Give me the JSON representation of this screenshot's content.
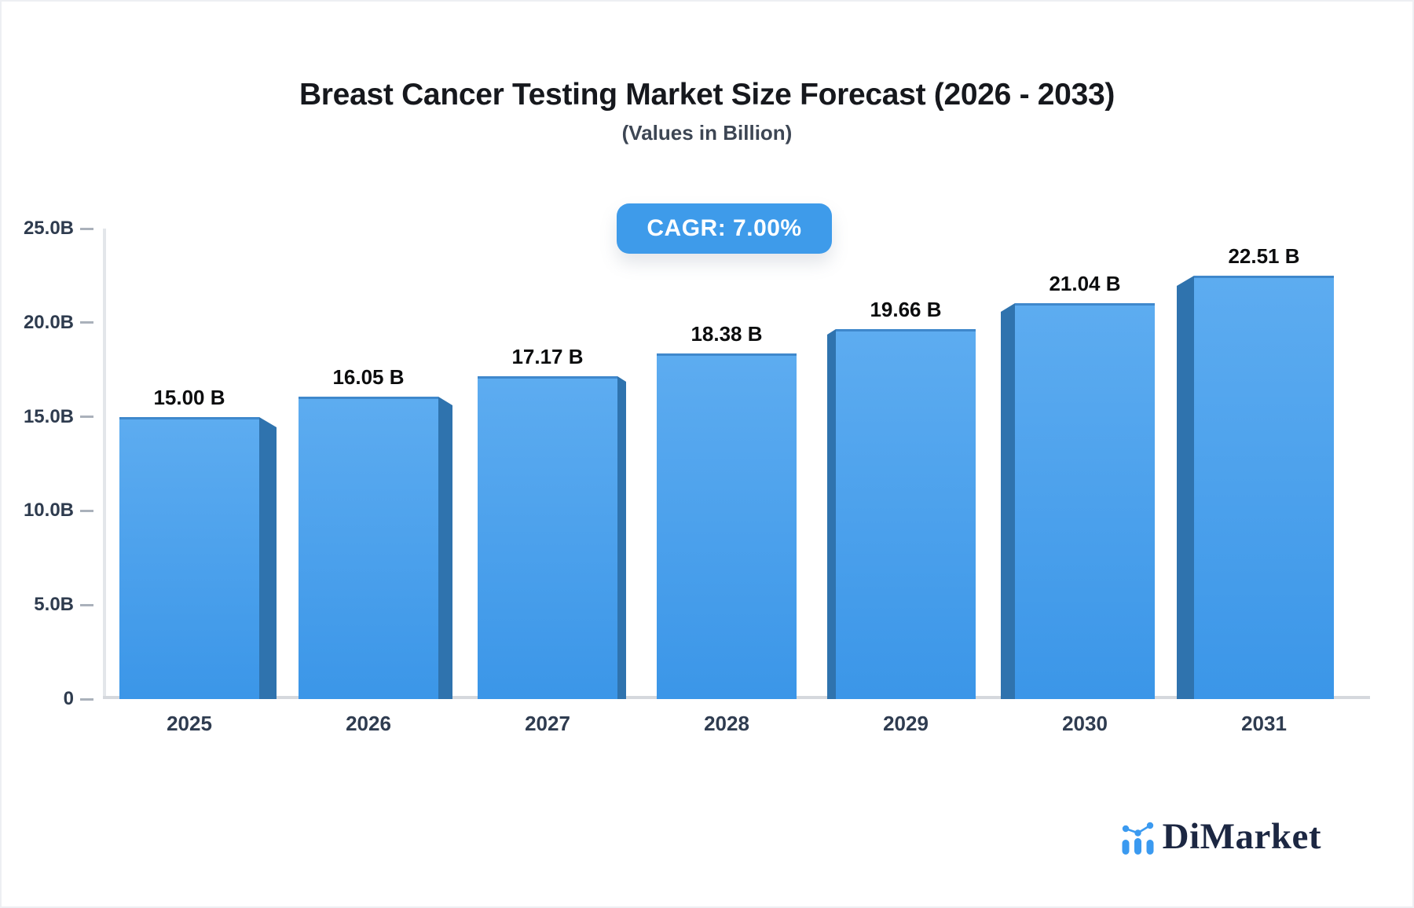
{
  "header": {
    "title": "Breast Cancer Testing Market Size Forecast (2026 - 2033)",
    "subtitle": "(Values in Billion)",
    "cagr_label": "CAGR: 7.00%"
  },
  "chart_data": {
    "type": "bar",
    "title": "Breast Cancer Testing Market Size Forecast (2026 - 2033)",
    "subtitle": "(Values in Billion)",
    "cagr": "7.00%",
    "categories": [
      "2025",
      "2026",
      "2027",
      "2028",
      "2029",
      "2030",
      "2031"
    ],
    "values": [
      15.0,
      16.05,
      17.17,
      18.38,
      19.66,
      21.04,
      22.51
    ],
    "value_labels": [
      "15.00 B",
      "16.05 B",
      "17.17 B",
      "18.38 B",
      "19.66 B",
      "21.04 B",
      "22.51 B"
    ],
    "unit": "Billion",
    "ylim": [
      0,
      25
    ],
    "yticks": [
      {
        "value": 0,
        "label": "0"
      },
      {
        "value": 5,
        "label": "5.0B"
      },
      {
        "value": 10,
        "label": "10.0B"
      },
      {
        "value": 15,
        "label": "15.0B"
      },
      {
        "value": 20,
        "label": "20.0B"
      },
      {
        "value": 25,
        "label": "25.0B"
      }
    ],
    "grid": false,
    "legend": false,
    "bar_style": "3d-extruded-center-perspective"
  },
  "branding": {
    "name": "DiMarket",
    "icon": "bar-line-chart-icon"
  },
  "colors": {
    "accent": "#3e9bea",
    "bar_face_top": "#5dacf0",
    "bar_face_bottom": "#3b96e8",
    "bar_top_edge": "#3f88cc",
    "bar_side": "#2f73ae",
    "title_text": "#16181d",
    "axis_text": "#2e3b4e",
    "axis_line": "#d5d8dd"
  }
}
